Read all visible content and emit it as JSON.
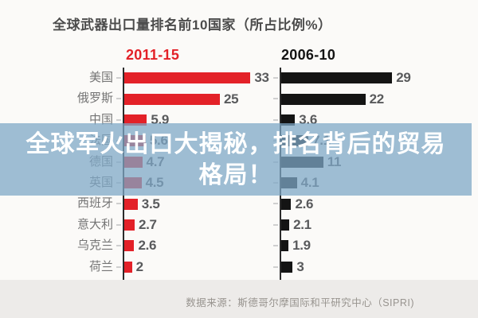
{
  "header": {
    "title": "全球武器出口量排名前10国家（所占比例%）"
  },
  "chart_data": {
    "type": "bar",
    "orientation": "horizontal",
    "unit": "%",
    "title": "全球武器出口量排名前10国家（所占比例%）",
    "legend_position": "top",
    "series": [
      {
        "name": "2011-15",
        "color": "#e32128"
      },
      {
        "name": "2006-10",
        "color": "#141414"
      }
    ],
    "categories": [
      "美国",
      "俄罗斯",
      "中国",
      "法国",
      "德国",
      "英国",
      "西班牙",
      "意大利",
      "乌克兰",
      "荷兰"
    ],
    "rows": [
      {
        "country": "美国",
        "share_2011_15": 33,
        "share_2006_10": 29
      },
      {
        "country": "俄罗斯",
        "share_2011_15": 25,
        "share_2006_10": 22
      },
      {
        "country": "中国",
        "share_2011_15": 5.9,
        "share_2006_10": 3.6
      },
      {
        "country": "法国",
        "share_2011_15": 5.6,
        "share_2006_10": 7.1
      },
      {
        "country": "德国",
        "share_2011_15": 4.7,
        "share_2006_10": 11
      },
      {
        "country": "英国",
        "share_2011_15": 4.5,
        "share_2006_10": 4.1
      },
      {
        "country": "西班牙",
        "share_2011_15": 3.5,
        "share_2006_10": 2.6
      },
      {
        "country": "意大利",
        "share_2011_15": 2.7,
        "share_2006_10": 2.1
      },
      {
        "country": "乌克兰",
        "share_2011_15": 2.6,
        "share_2006_10": 1.9
      },
      {
        "country": "荷兰",
        "share_2011_15": 2,
        "share_2006_10": 3
      }
    ]
  },
  "overlay": {
    "text_line1": "全球军火出口大揭秘，排名背后的贸易",
    "text_line2": "格局！",
    "background_color": "#7da7c6",
    "text_color": "#ffffff"
  },
  "footer": {
    "source": "数据来源：斯德哥尔摩国际和平研究中心（SIPRI)"
  }
}
